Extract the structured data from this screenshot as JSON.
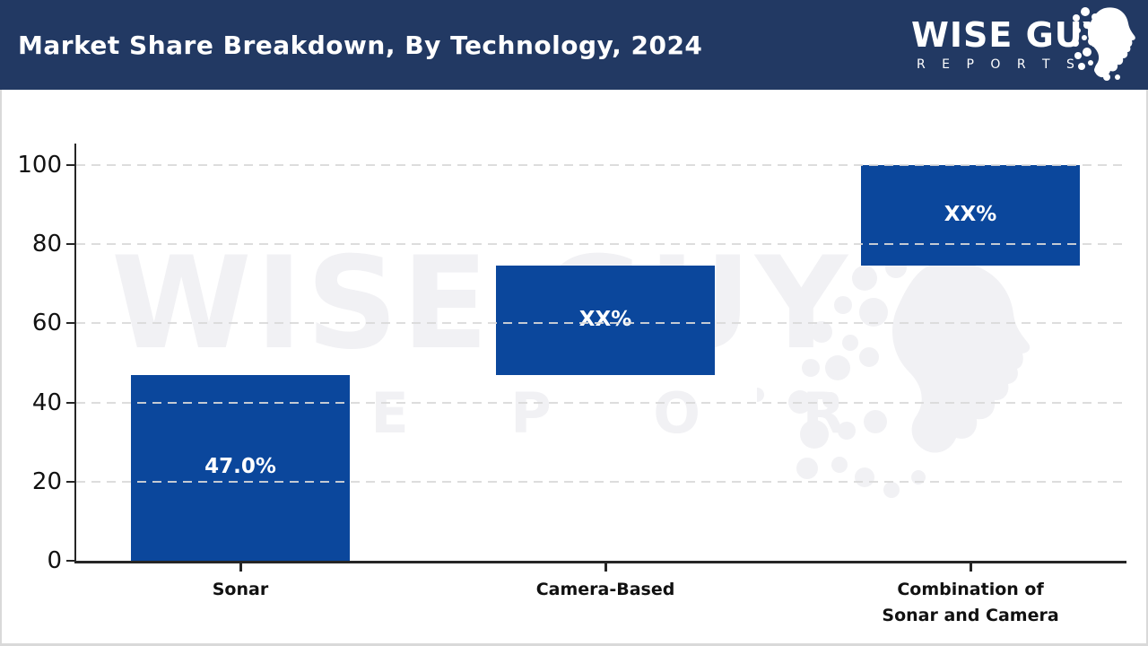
{
  "header": {
    "title": "Market Share Breakdown, By Technology, 2024",
    "logo": {
      "line1": "WISE GUY",
      "line2": "R E P O R T S"
    }
  },
  "watermark": {
    "line1": "WISE GUY",
    "line2": "R E P O R T S"
  },
  "colors": {
    "header_bg": "#223963",
    "bar": "#0b479c",
    "gridline": "#d9d9d9",
    "axis": "#262626",
    "watermark": "#f1f1f4",
    "title_text": "#ffffff"
  },
  "chart_data": {
    "type": "bar",
    "subtype": "waterfall",
    "title": "Market Share Breakdown, By Technology, 2024",
    "categories": [
      "Sonar",
      "Camera-Based",
      "Combination of\nSonar and Camera"
    ],
    "segments": [
      {
        "category": "Sonar",
        "start": 0,
        "end": 47,
        "label": "47.0%"
      },
      {
        "category": "Camera-Based",
        "start": 47,
        "end": 74.7,
        "label": "XX%"
      },
      {
        "category": "Combination of\nSonar and Camera",
        "start": 74.7,
        "end": 100,
        "label": "XX%"
      }
    ],
    "ylabel": "",
    "xlabel": "",
    "yticks": [
      0,
      20,
      40,
      60,
      80,
      100
    ],
    "ylim": [
      0,
      106
    ],
    "grid": "horizontal-dashed",
    "legend": "none",
    "bar_color": "#0b479c",
    "value_label_color": "#ffffff"
  }
}
